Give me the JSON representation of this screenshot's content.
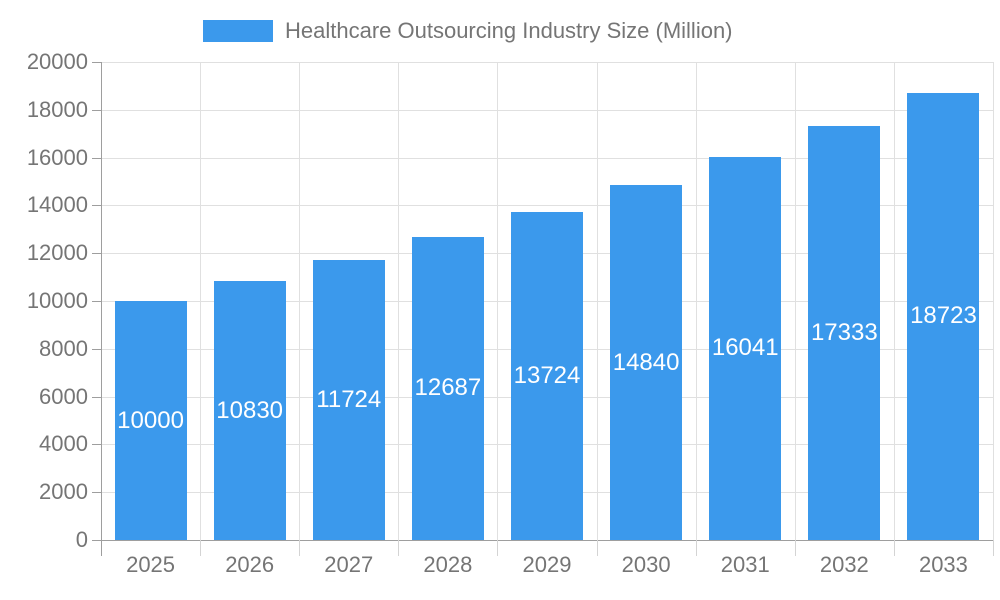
{
  "chart_data": {
    "type": "bar",
    "title": "Healthcare Outsourcing Industry Size (Million)",
    "categories": [
      "2025",
      "2026",
      "2027",
      "2028",
      "2029",
      "2030",
      "2031",
      "2032",
      "2033"
    ],
    "values": [
      10000,
      10830,
      11724,
      12687,
      13724,
      14840,
      16041,
      17333,
      18723
    ],
    "xlabel": "",
    "ylabel": "",
    "ylim": [
      0,
      20000
    ],
    "yticks": [
      0,
      2000,
      4000,
      6000,
      8000,
      10000,
      12000,
      14000,
      16000,
      18000,
      20000
    ],
    "grid": true,
    "legend_position": "top",
    "value_label_position": "inside-center",
    "colors": {
      "bar": "#3B99EC",
      "value_label": "#FFFFFF",
      "axis_text": "#757575",
      "grid": "#E0E0E0",
      "axis_line": "#9E9E9E",
      "category_tick": "#D4D4D4"
    }
  }
}
